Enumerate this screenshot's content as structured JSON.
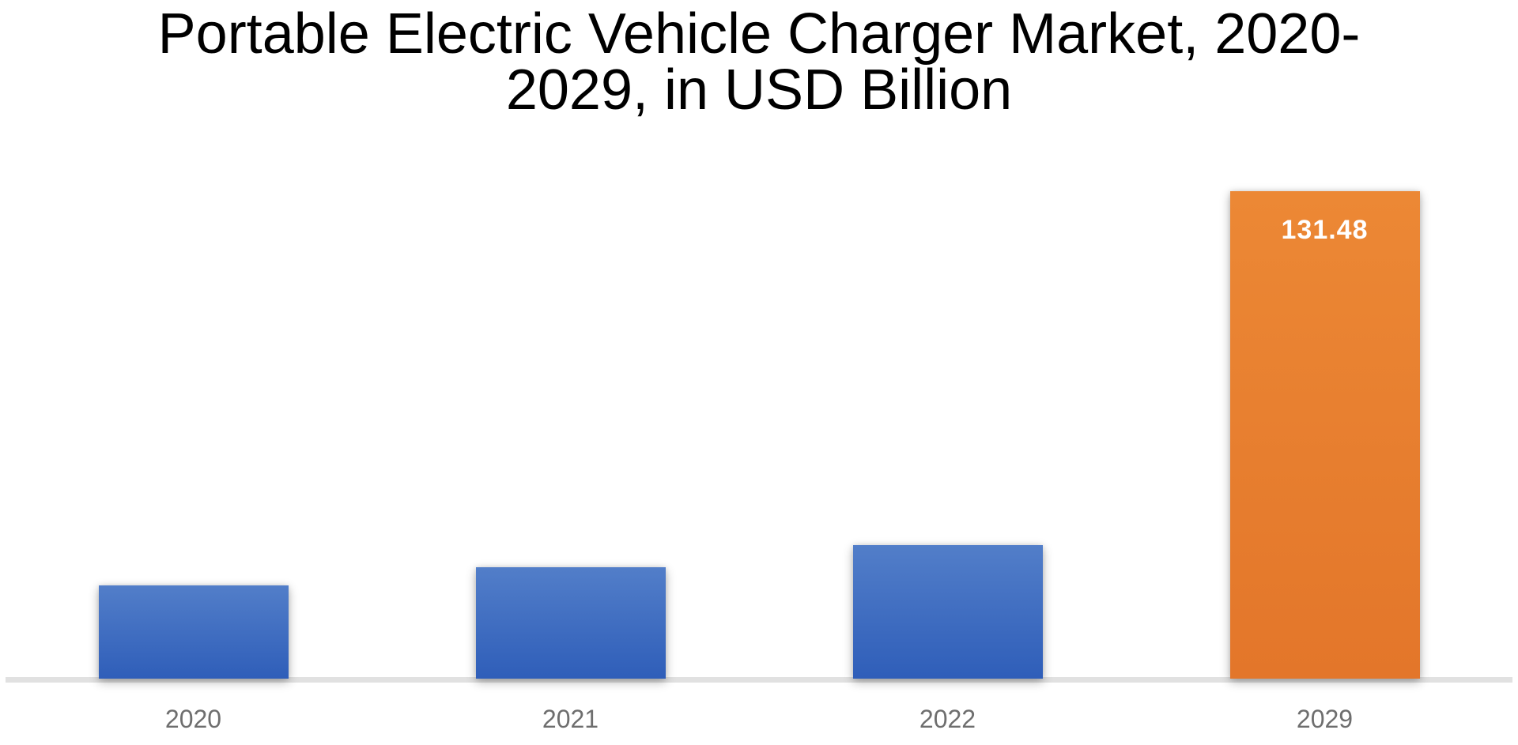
{
  "title": {
    "lines": [
      "Portable Electric Vehicle Charger Market, 2020-",
      "2029, in USD Billion"
    ],
    "text": "Portable Electric Vehicle Charger Market, 2020-2029, in USD Billion"
  },
  "chart_data": {
    "type": "bar",
    "title": "Portable Electric Vehicle Charger Market, 2020-2029, in USD Billion",
    "categories": [
      "2020",
      "2021",
      "2022",
      "2029"
    ],
    "values": [
      25.1,
      30.0,
      36.0,
      131.48
    ],
    "data_labels": [
      "",
      "",
      "",
      "131.48"
    ],
    "xlabel": "",
    "ylabel": "",
    "ylim": [
      0,
      140
    ],
    "grid": false,
    "legend": false,
    "axis_labels_shown": "x-only",
    "bar_styles": [
      "default",
      "default",
      "default",
      "highlight"
    ],
    "colors": {
      "bar_default_top": "#527EC9",
      "bar_default_bottom": "#2F5EB9",
      "bar_highlight_top": "#EC8835",
      "bar_highlight_bottom": "#E3762A",
      "axis_line": "#E1E1E1",
      "category_label": "#6E6E6E",
      "data_label": "#FFFFFF",
      "title": "#000000"
    }
  }
}
